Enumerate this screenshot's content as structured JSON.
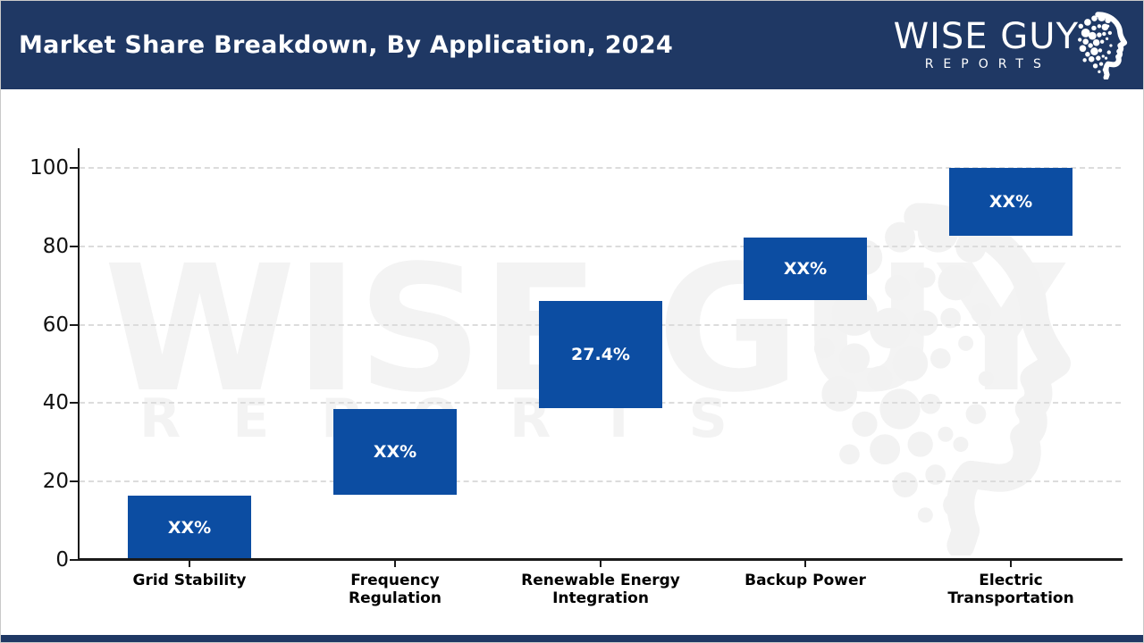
{
  "header": {
    "title": "Market Share Breakdown, By Application, 2024",
    "background": "#1F3864",
    "logo": {
      "wordmark": "WISE GUY",
      "subtext": "REPORTS"
    }
  },
  "watermark": {
    "wordmark": "WISE GUY",
    "subtext": "REPORTS"
  },
  "chart_data": {
    "type": "bar",
    "subtype": "waterfall",
    "title": "Market Share Breakdown, By Application, 2024",
    "categories": [
      "Grid Stability",
      "Frequency\nRegulation",
      "Renewable Energy\nIntegration",
      "Backup Power",
      "Electric\nTransportation"
    ],
    "segments": [
      {
        "category": "Grid Stability",
        "start": 0,
        "end": 16.5,
        "label": "XX%"
      },
      {
        "category": "Frequency Regulation",
        "start": 16.7,
        "end": 38.5,
        "label": "XX%"
      },
      {
        "category": "Renewable Energy Integration",
        "start": 38.7,
        "end": 66.1,
        "label": "27.4%"
      },
      {
        "category": "Backup Power",
        "start": 66.3,
        "end": 82.3,
        "label": "XX%"
      },
      {
        "category": "Electric Transportation",
        "start": 82.6,
        "end": 100,
        "label": "XX%"
      }
    ],
    "yticks": [
      0,
      20,
      40,
      60,
      80,
      100
    ],
    "ylim": [
      0,
      105
    ],
    "xlabel": "",
    "ylabel": "",
    "grid": "horizontal-dashed",
    "legend": "none",
    "bar_color": "#0C4DA2",
    "bar_label_color": "#FFFFFF",
    "navy": "#1F3864"
  }
}
